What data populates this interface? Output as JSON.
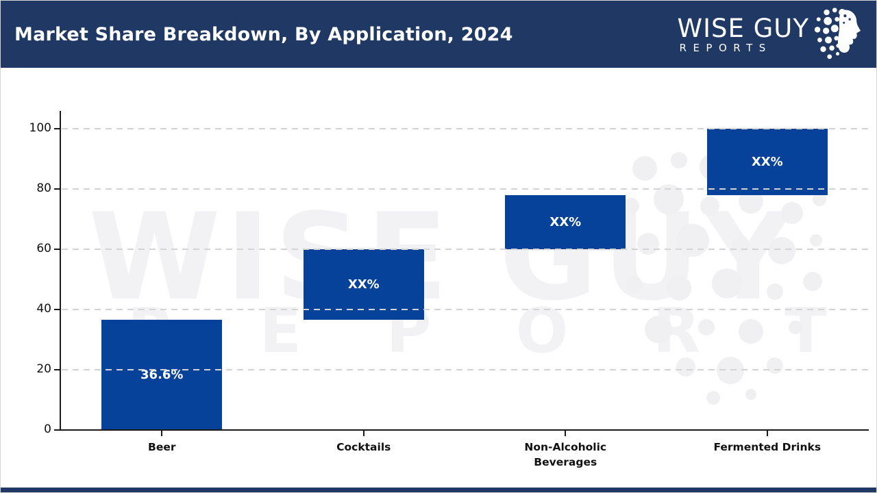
{
  "header": {
    "title": "Market Share Breakdown, By Application, 2024",
    "logo": {
      "line1": "WISE GUY",
      "line2": "REPORTS"
    }
  },
  "watermark": {
    "line1": "WISE GUY",
    "line2": "R E P O R T S"
  },
  "chart_data": {
    "type": "bar",
    "subtype": "waterfall",
    "title": "Market Share Breakdown, By Application, 2024",
    "categories": [
      "Beer",
      "Cocktails",
      "Non-Alcoholic\nBeverages",
      "Fermented Drinks"
    ],
    "segments": [
      {
        "category": "Beer",
        "start": 0,
        "end": 36.6,
        "label": "36.6%"
      },
      {
        "category": "Cocktails",
        "start": 36.6,
        "end": 60,
        "label": "XX%"
      },
      {
        "category": "Non-Alcoholic Beverages",
        "start": 60,
        "end": 78,
        "label": "XX%"
      },
      {
        "category": "Fermented Drinks",
        "start": 78,
        "end": 100,
        "label": "XX%"
      }
    ],
    "xlabel": "",
    "ylabel": "",
    "yticks": [
      0,
      20,
      40,
      60,
      80,
      100
    ],
    "ylim": [
      0,
      105.5
    ],
    "grid": "horizontal-dashed",
    "legend": "none",
    "colors": {
      "bar": "#07429a",
      "header_bg": "#1f3864",
      "grid": "#d4d4d4",
      "axis": "#1a1a1a",
      "bar_label": "#ffffff",
      "watermark": "#f2f2f4"
    }
  }
}
